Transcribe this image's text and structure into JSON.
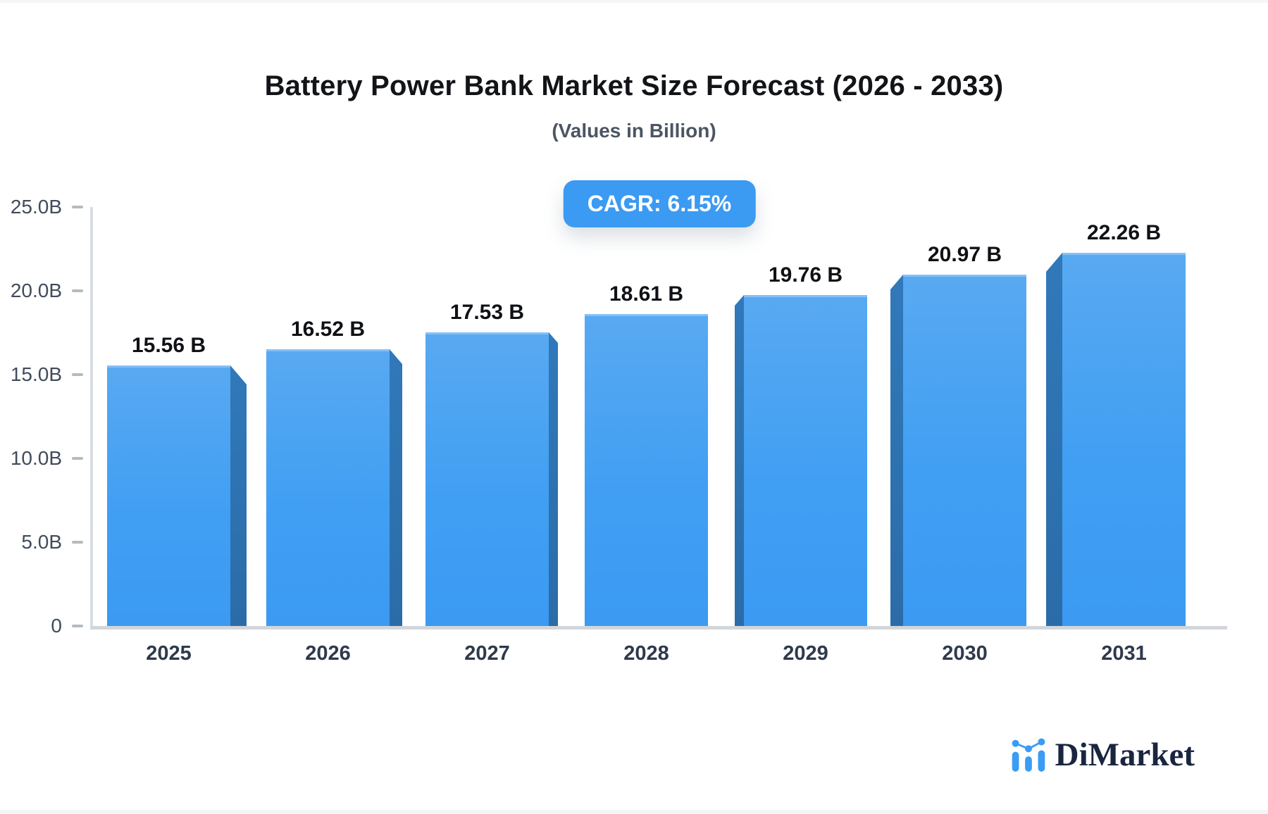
{
  "header": {
    "title": "Battery Power Bank Market Size Forecast (2026 - 2033)",
    "subtitle": "(Values in Billion)",
    "cagr_label": "CAGR: 6.15%"
  },
  "chart_data": {
    "type": "bar",
    "title": "Battery Power Bank Market Size Forecast (2026 - 2033)",
    "subtitle": "(Values in Billion)",
    "annotation": "CAGR: 6.15%",
    "categories": [
      "2025",
      "2026",
      "2027",
      "2028",
      "2029",
      "2030",
      "2031"
    ],
    "values": [
      15.56,
      16.52,
      17.53,
      18.61,
      19.76,
      20.97,
      22.26
    ],
    "value_labels": [
      "15.56 B",
      "16.52 B",
      "17.53 B",
      "18.61 B",
      "19.76 B",
      "20.97 B",
      "22.26 B"
    ],
    "y_ticks": [
      "0",
      "5.0B",
      "10.0B",
      "15.0B",
      "20.0B",
      "25.0B"
    ],
    "y_tick_values": [
      0,
      5,
      10,
      15,
      20,
      25
    ],
    "ylim": [
      0,
      25
    ],
    "xlabel": "",
    "ylabel": "",
    "grid": false,
    "legend": false,
    "style": "3d-perspective-bars",
    "colors": {
      "bar_main": "#3f9ef2",
      "bar_side": "#2d73b2",
      "accent": "#3b9af2",
      "axis": "#d6dade",
      "text": "#121417"
    }
  },
  "footer": {
    "brand": "DiMarket",
    "logo_icon": "bar-chart-trend-icon",
    "logo_color": "#3b9cf4"
  }
}
